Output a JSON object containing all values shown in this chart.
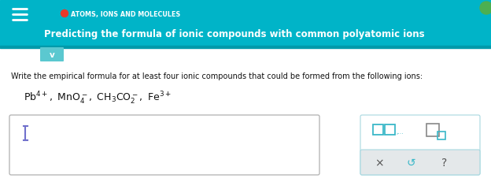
{
  "header_bg": "#00b4c8",
  "header_text_color": "#ffffff",
  "header_small_text": "ATOMS, IONS AND MOLECULES",
  "header_main_text": "Predicting the formula of ionic compounds with common polyatomic ions",
  "dot_color": "#e8392a",
  "green_dot_color": "#4caf50",
  "body_bg": "#ffffff",
  "body_text": "Write the empirical formula for at least four ionic compounds that could be formed from the following ions:",
  "chevron_color": "#5bc8d0",
  "chevron_bg": "#d0eef2",
  "toolbar_border": "#a8d8e0",
  "toolbar_bottom_bg": "#e4e8ea",
  "hamburger_color": "#ffffff",
  "cursor_color": "#7070cc",
  "icon_color": "#3ab8c8"
}
